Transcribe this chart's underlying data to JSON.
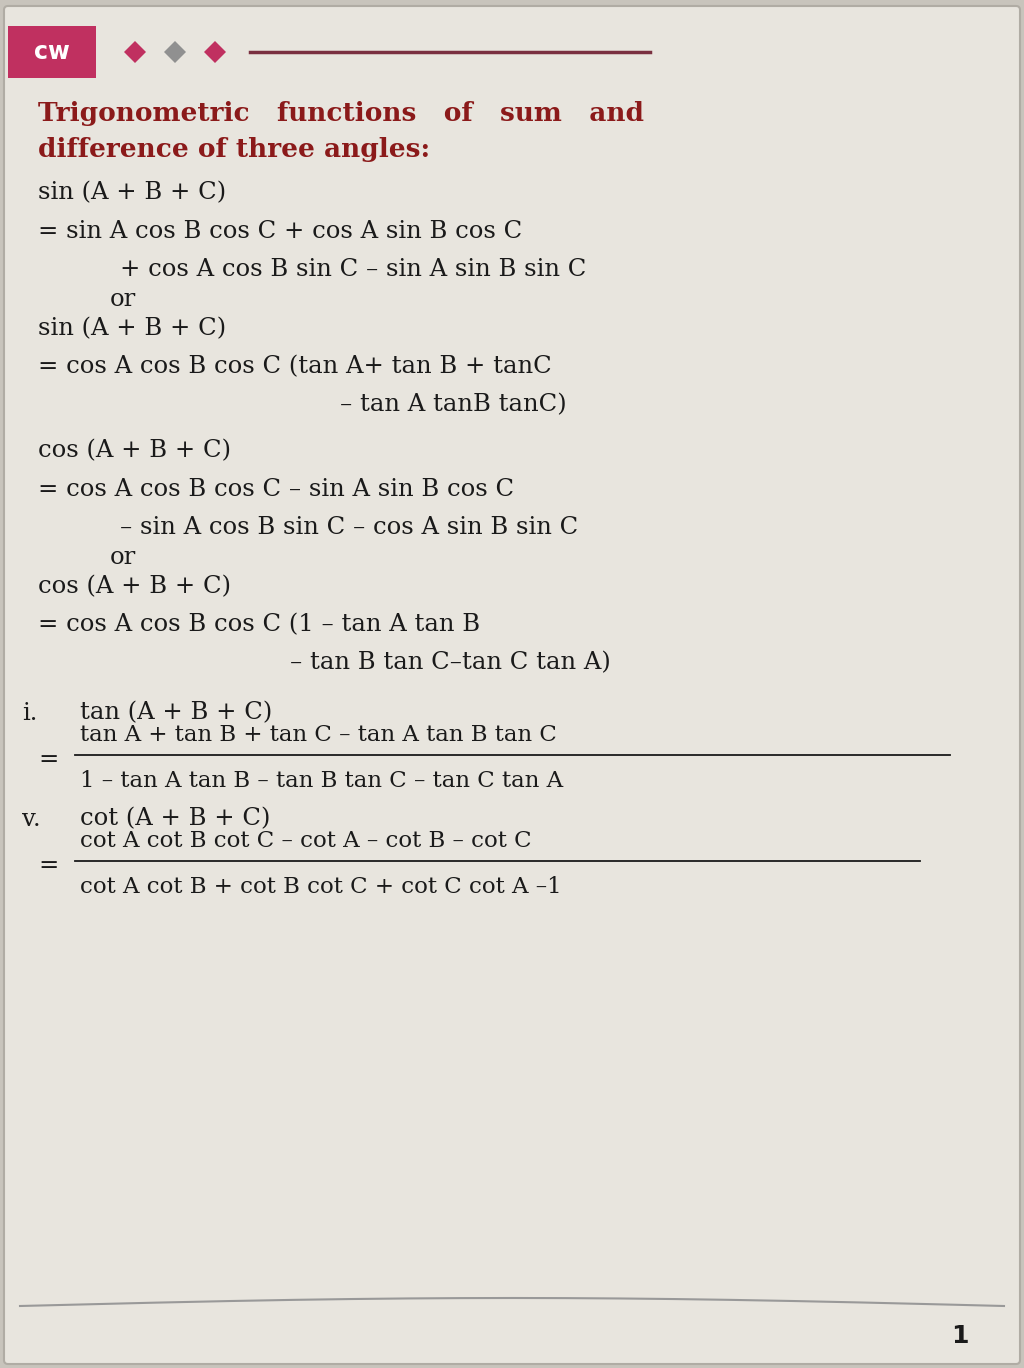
{
  "bg_color": "#c8c4bc",
  "paper_color": "#e8e5de",
  "header_bg": "#c03060",
  "header_text": "cw",
  "title_color": "#8b1a1a",
  "text_color": "#1a1a1a",
  "title_line1": "Trigonometric   functions   of   sum   and",
  "title_line2": "difference of three angles:",
  "tan_label": "i.",
  "tan_head": "tan (A + B + C)",
  "tan_num": "tan A + tan B + tan C – tan A tan B tan C",
  "tan_den": "1 – tan A tan B – tan B tan C – tan C tan A",
  "cot_label": "v.",
  "cot_head": "cot (A + B + C)",
  "cot_num": "cot A cot B cot C – cot A – cot B – cot C",
  "cot_den": "cot A cot B + cot B cot C + cot C cot A –1",
  "page_num": "1",
  "diamond1_color": "#c03060",
  "diamond2_color": "#909090",
  "diamond3_color": "#c03060",
  "line_color": "#7a3040"
}
